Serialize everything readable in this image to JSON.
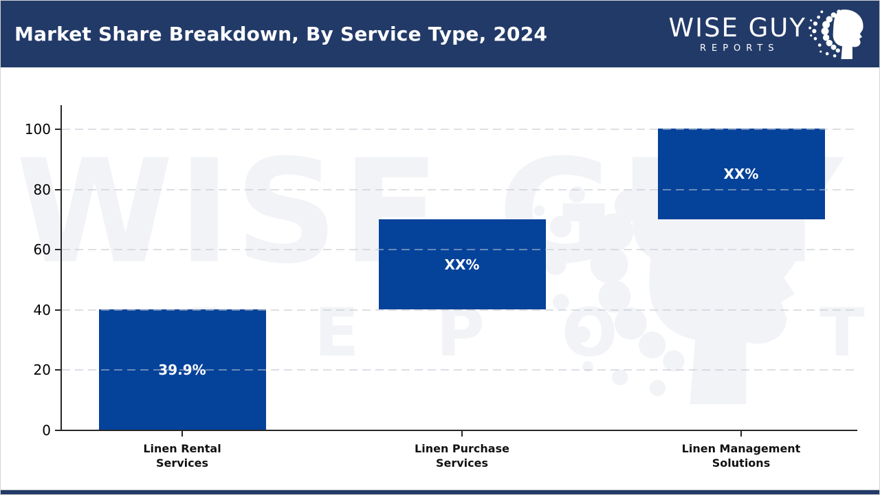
{
  "header": {
    "title": "Market Share Breakdown, By Service Type, 2024",
    "logo": {
      "line1": "WISE GUY",
      "line2": "REPORTS"
    }
  },
  "watermark": {
    "line1": "WISE GUY",
    "line2": "REPORTS"
  },
  "colors": {
    "header_bg": "#223a68",
    "bar": "#05429a",
    "bar_label": "#ffffff",
    "axis": "#262626",
    "gridline": "#d9dce2",
    "title_text": "#ffffff",
    "tick_text": "#000000"
  },
  "chart_data": {
    "type": "bar",
    "subtype": "floating-waterfall",
    "title": "Market Share Breakdown, By Service Type, 2024",
    "categories": [
      "Linen Rental Services",
      "Linen Purchase Services",
      "Linen Management Solutions"
    ],
    "category_label_lines": [
      [
        "Linen Rental",
        "Services"
      ],
      [
        "Linen Purchase",
        "Services"
      ],
      [
        "Linen Management",
        "Solutions"
      ]
    ],
    "segments": [
      {
        "category": "Linen Rental Services",
        "start": 0,
        "end": 39.9,
        "label": "39.9%"
      },
      {
        "category": "Linen Purchase Services",
        "start": 39.9,
        "end": 70,
        "label": "XX%"
      },
      {
        "category": "Linen Management Solutions",
        "start": 70,
        "end": 100,
        "label": "XX%"
      }
    ],
    "xlabel": "",
    "ylabel": "",
    "yticks": [
      0,
      20,
      40,
      60,
      80,
      100
    ],
    "ylim": [
      0,
      107
    ],
    "grid": "horizontal-dashed",
    "legend": "none"
  }
}
